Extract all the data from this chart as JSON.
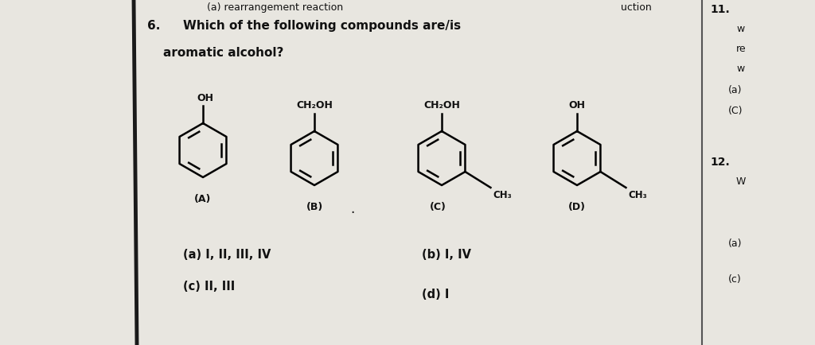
{
  "bg_color": "#e8e6e0",
  "main_bg": "#dddbd4",
  "left_shadow_color": "#c8c5bd",
  "spine_color": "#3a3a3a",
  "divider_color": "#888888",
  "question_num": "6.",
  "top_text": "(a) rearrangement reaction",
  "top_right_text": "uction",
  "question_line1": "Which of the following compounds are/is",
  "question_line2": "aromatic alcohol?",
  "label_A": "(A)",
  "label_B": "(B)",
  "label_C": "(C)",
  "label_D": "(D)",
  "opt_a": "(a) I, II, III, IV",
  "opt_b": "(b) I, IV",
  "opt_c": "(c) II, III",
  "opt_d": "(d) I",
  "r11": "11.",
  "r12": "12.",
  "r_w1": "w",
  "r_re": "re",
  "r_w2": "w",
  "r_a": "(a)",
  "r_C": "(C)",
  "r_W": "W",
  "r_a2": "(a)",
  "r_c2": "(c)",
  "hex_r": 0.34,
  "lw": 1.8,
  "text_color": "#111111"
}
